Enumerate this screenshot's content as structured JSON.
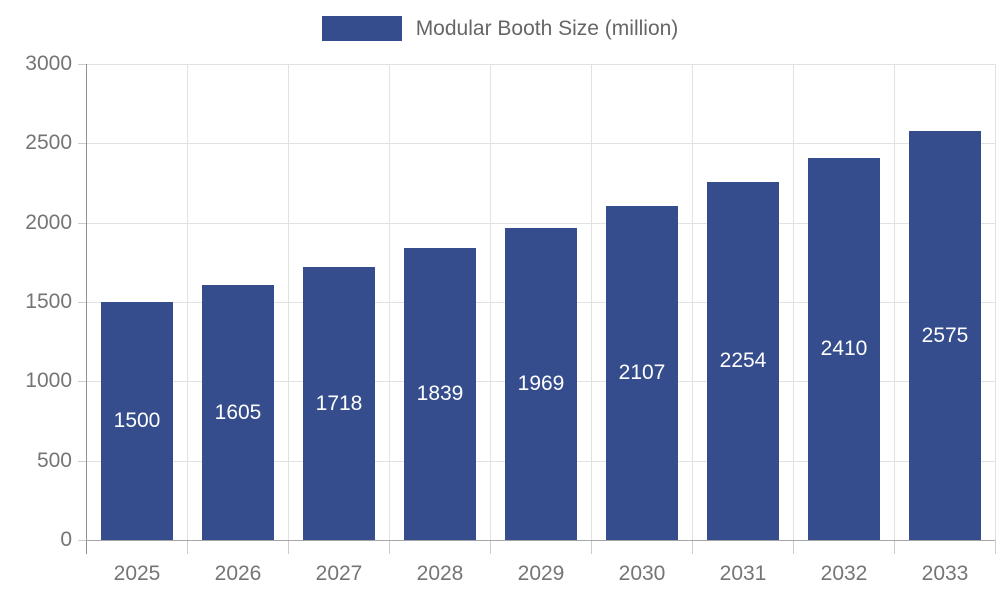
{
  "legend": {
    "label": "Modular Booth Size (million)"
  },
  "colors": {
    "bar": "#354D8C",
    "value_label": "#FFFFFF",
    "axis_label": "#757575",
    "legend_text": "#666666",
    "gridline": "#E2E2E2",
    "y_axis_line": "#8F8F8F",
    "x_axis_line": "#A6A6A6",
    "tick": "#CCCCCC"
  },
  "chart_data": {
    "type": "bar",
    "title": "",
    "series_name": "Modular Booth Size (million)",
    "categories": [
      "2025",
      "2026",
      "2027",
      "2028",
      "2029",
      "2030",
      "2031",
      "2032",
      "2033"
    ],
    "values": [
      1500,
      1605,
      1718,
      1839,
      1969,
      2107,
      2254,
      2410,
      2575
    ],
    "xlabel": "",
    "ylabel": "",
    "ylim": [
      0,
      3000
    ],
    "yticks": [
      0,
      500,
      1000,
      1500,
      2000,
      2500,
      3000
    ],
    "grid": true,
    "legend_position": "top-center",
    "value_labels": "inside-middle-white"
  }
}
